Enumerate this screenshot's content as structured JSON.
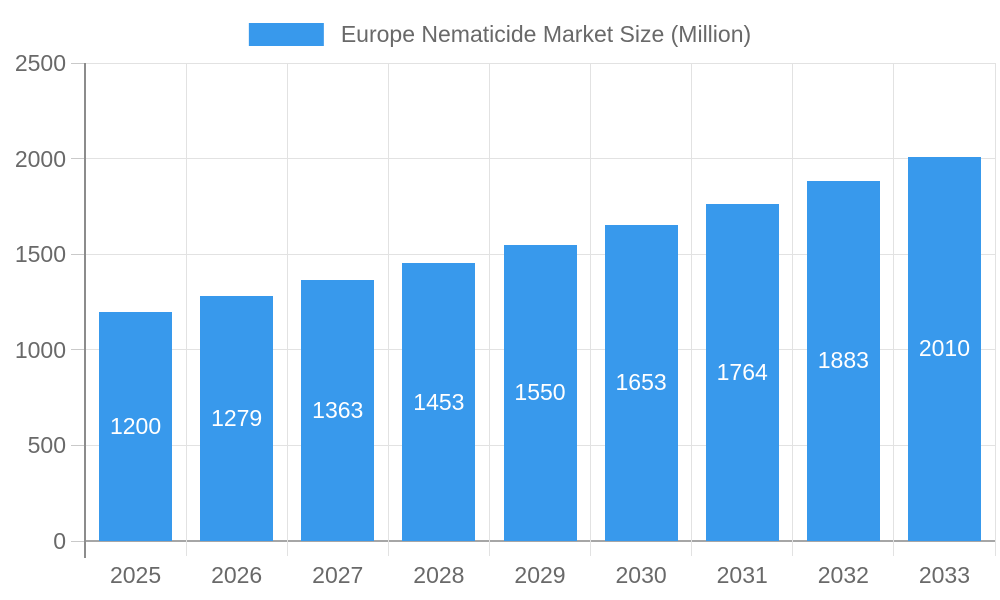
{
  "chart_data": {
    "type": "bar",
    "title": "Europe Nematicide Market Size (Million)",
    "categories": [
      "2025",
      "2026",
      "2027",
      "2028",
      "2029",
      "2030",
      "2031",
      "2032",
      "2033"
    ],
    "values": [
      1200,
      1279,
      1363,
      1453,
      1550,
      1653,
      1764,
      1883,
      2010
    ],
    "xlabel": "",
    "ylabel": "",
    "ylim": [
      0,
      2500
    ],
    "yticks": [
      0,
      500,
      1000,
      1500,
      2000,
      2500
    ],
    "grid": true,
    "legend_position": "top",
    "value_labels": "centered-inside-bars",
    "colors": {
      "bar": "#3899EC",
      "value_label": "#FFFFFF",
      "tick_label": "#696969",
      "gridline": "#E2E2E2",
      "axis_line": "#8C8C8C",
      "zero_line": "#A6A6A6"
    }
  }
}
